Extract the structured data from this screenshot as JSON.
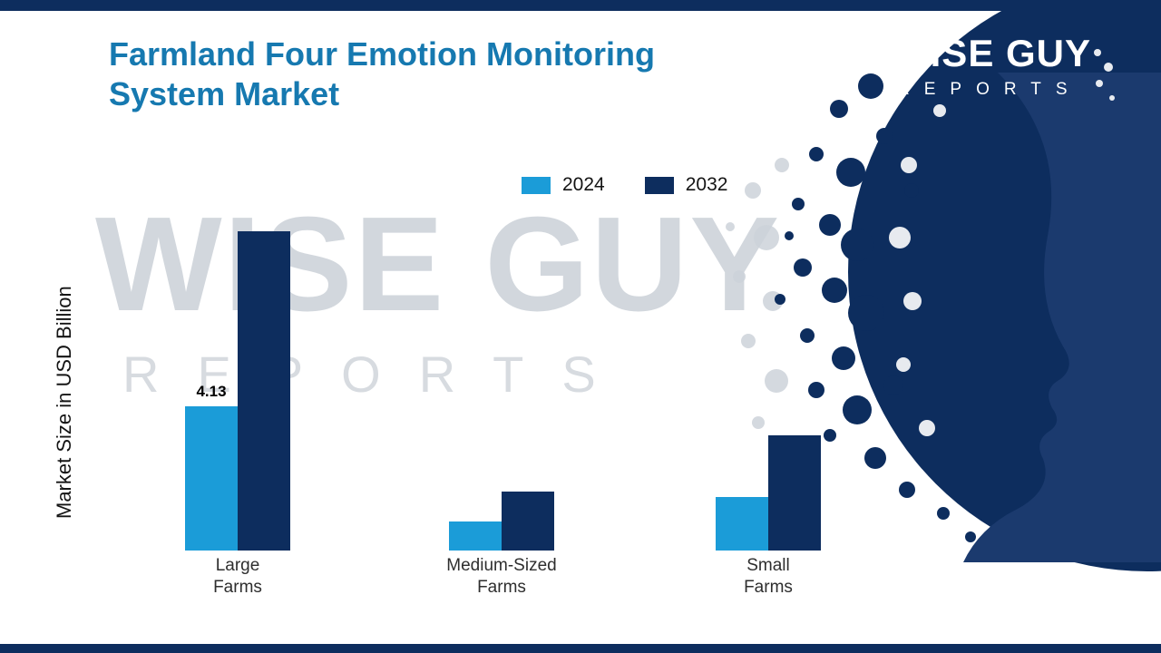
{
  "page": {
    "title_line1": "Farmland Four Emotion Monitoring",
    "title_line2": "System Market",
    "accent_color": "#1679b0"
  },
  "brand": {
    "logo_top": "WISE GUY",
    "logo_bottom": "REPORTS",
    "navy": "#0d2d5e"
  },
  "watermark": {
    "line1": "WISE GUY",
    "line2": "REPORTS"
  },
  "chart_data": {
    "type": "bar",
    "title": "Farmland Four Emotion Monitoring System Market",
    "xlabel": "",
    "ylabel": "Market Size in USD Billion",
    "categories": [
      "Large Farms",
      "Medium-Sized Farms",
      "Small Farms"
    ],
    "series": [
      {
        "name": "2024",
        "color": "#1b9cd8",
        "values": [
          4.13,
          0.83,
          1.53
        ]
      },
      {
        "name": "2032",
        "color": "#0d2d5e",
        "values": [
          9.15,
          1.69,
          3.3
        ]
      }
    ],
    "annotations": [
      {
        "category_index": 0,
        "series_index": 0,
        "text": "4.13"
      }
    ],
    "ylim": [
      0,
      10
    ],
    "grid": false,
    "legend_position": "top-center"
  }
}
